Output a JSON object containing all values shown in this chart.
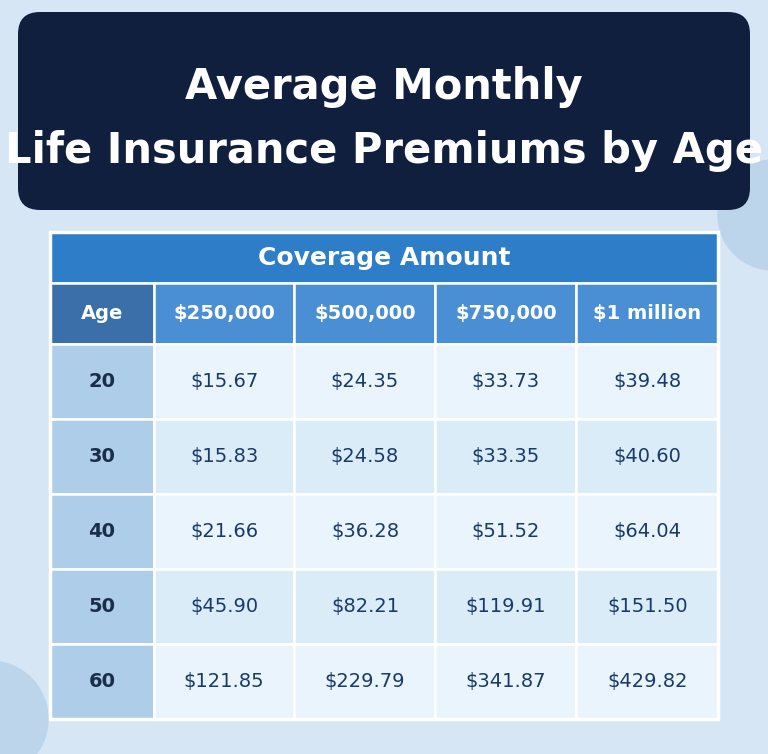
{
  "title_line1": "Average Monthly",
  "title_line2": "Life Insurance Premiums by Age",
  "title_bg_color": "#0f1f3d",
  "title_text_color": "#ffffff",
  "body_bg_color": "#d6e6f5",
  "coverage_header": "Coverage Amount",
  "coverage_header_bg": "#2d7dc8",
  "coverage_header_text": "#ffffff",
  "col_headers": [
    "Age",
    "$250,000",
    "$500,000",
    "$750,000",
    "$1 million"
  ],
  "age_col_bg": "#aecde8",
  "age_col_text": "#1a2e4a",
  "col_header_bg_age": "#3a6faa",
  "col_header_bg_rest": "#4a8fd4",
  "col_header_text": "#ffffff",
  "row_bg_even": "#eaf4fc",
  "row_bg_odd": "#d9ecf8",
  "cell_text_color": "#1a3a6b",
  "circle_color": "#bdd5ea",
  "rows": [
    [
      "20",
      "$15.67",
      "$24.35",
      "$33.73",
      "$39.48"
    ],
    [
      "30",
      "$15.83",
      "$24.58",
      "$33.35",
      "$40.60"
    ],
    [
      "40",
      "$21.66",
      "$36.28",
      "$51.52",
      "$64.04"
    ],
    [
      "50",
      "$45.90",
      "$82.21",
      "$119.91",
      "$151.50"
    ],
    [
      "60",
      "$121.85",
      "$229.79",
      "$341.87",
      "$429.82"
    ]
  ],
  "fig_width": 7.68,
  "fig_height": 7.54,
  "dpi": 100
}
